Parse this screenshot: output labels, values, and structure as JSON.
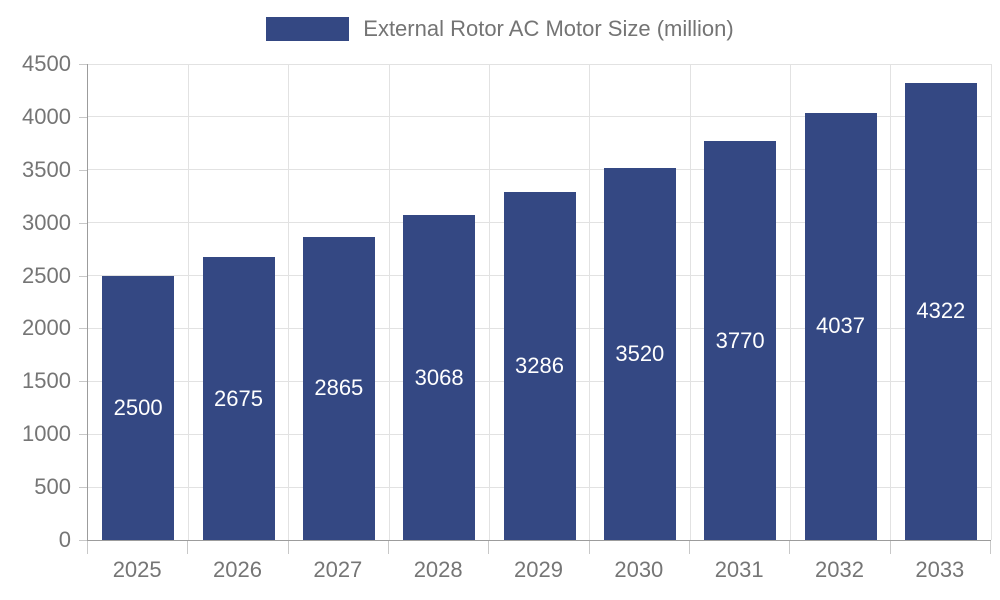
{
  "chart_data": {
    "type": "bar",
    "title": "External Rotor AC Motor Size (million)",
    "legend_position": "top",
    "categories": [
      "2025",
      "2026",
      "2027",
      "2028",
      "2029",
      "2030",
      "2031",
      "2032",
      "2033"
    ],
    "values": [
      2500,
      2675,
      2865,
      3068,
      3286,
      3520,
      3770,
      4037,
      4322
    ],
    "value_labels": [
      "2500",
      "2675",
      "2865",
      "3068",
      "3286",
      "3520",
      "3770",
      "4037",
      "4322"
    ],
    "xlabel": "",
    "ylabel": "",
    "ylim": [
      0,
      4500
    ],
    "yticks": [
      0,
      500,
      1000,
      1500,
      2000,
      2500,
      3000,
      3500,
      4000,
      4500
    ],
    "grid": true,
    "bar_color": "#344883",
    "value_label_color": "#ffffff",
    "axis_text_color": "#757575",
    "gridline_color": "#e2e2e2",
    "axis_line_color": "#9c9c9c"
  }
}
